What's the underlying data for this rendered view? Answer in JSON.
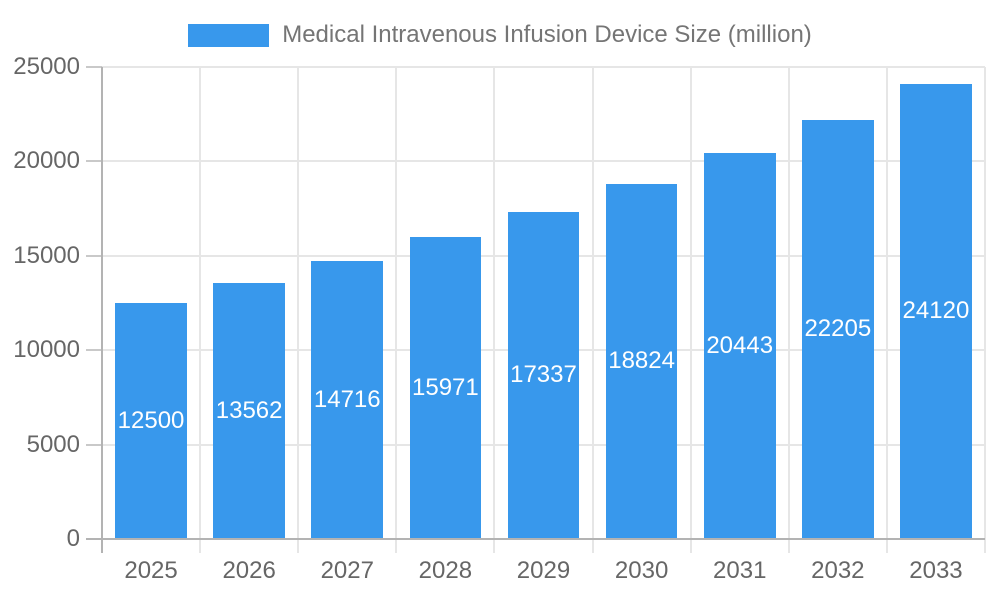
{
  "legend": {
    "label": "Medical Intravenous Infusion Device Size (million)"
  },
  "colors": {
    "bar": "#3898EC",
    "grid": "#E6E6E6",
    "axis": "#B3B3B3",
    "y_tick": "#C9C9C9",
    "x_tick": "#E6E6E6",
    "tick_label": "#666666",
    "legend_text": "#757575",
    "value_label": "#FFFFFF",
    "background": "#FFFFFF"
  },
  "chart_data": {
    "type": "bar",
    "title": "Medical Intravenous Infusion Device Size (million)",
    "categories": [
      "2025",
      "2026",
      "2027",
      "2028",
      "2029",
      "2030",
      "2031",
      "2032",
      "2033"
    ],
    "values": [
      12500,
      13562,
      14716,
      15971,
      17337,
      18824,
      20443,
      22205,
      24120
    ],
    "xlabel": "",
    "ylabel": "",
    "ylim": [
      0,
      25000
    ],
    "yticks": [
      0,
      5000,
      10000,
      15000,
      20000,
      25000
    ],
    "grid": "on",
    "legend_position": "top",
    "value_labels": "inside-center-white"
  }
}
